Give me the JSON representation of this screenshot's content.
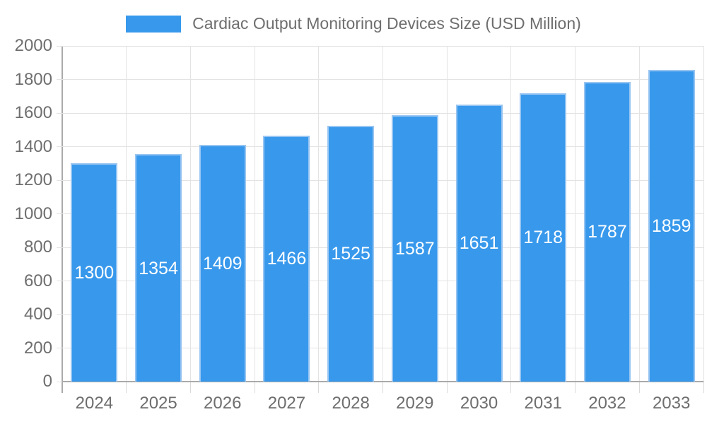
{
  "legend": {
    "label": "Cardiac Output Monitoring Devices Size (USD Million)"
  },
  "chart_data": {
    "type": "bar",
    "title": "Cardiac Output Monitoring Devices Size (USD Million)",
    "categories": [
      "2024",
      "2025",
      "2026",
      "2027",
      "2028",
      "2029",
      "2030",
      "2031",
      "2032",
      "2033"
    ],
    "values": [
      1300,
      1354,
      1409,
      1466,
      1525,
      1587,
      1651,
      1718,
      1787,
      1859
    ],
    "xlabel": "",
    "ylabel": "",
    "ylim": [
      0,
      2000
    ],
    "yticks": [
      0,
      200,
      400,
      600,
      800,
      1000,
      1200,
      1400,
      1600,
      1800,
      2000
    ],
    "grid": true,
    "legend_position": "top",
    "value_labels": "centered-white-inside-bars",
    "colors": {
      "bar_fill": "#3899EC",
      "bar_border": "#98C5F2",
      "gridline": "#e3e3e3",
      "axis_line": "#aaaaaa",
      "axis_text": "#6e6e6e",
      "value_label": "#ffffff",
      "background": "#ffffff"
    }
  }
}
